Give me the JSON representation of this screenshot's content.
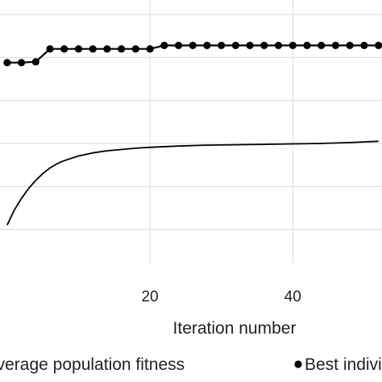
{
  "chart_data": {
    "type": "line",
    "xlabel": "Iteration number",
    "xlim": [
      -1,
      52.5
    ],
    "ylim": [
      0,
      6
    ],
    "grid": true,
    "x_ticks": [
      {
        "value": 20,
        "label": "20"
      },
      {
        "value": 40,
        "label": "40"
      }
    ],
    "legend": {
      "position": "bottom",
      "entries": [
        {
          "label": "Average population fitness",
          "marker": "line"
        },
        {
          "label": "Best individual",
          "marker": "circle"
        }
      ]
    },
    "series": [
      {
        "name": "Best individual",
        "marker": "circle",
        "color": "#000000",
        "x": [
          0,
          2,
          4,
          6,
          8,
          10,
          12,
          14,
          16,
          18,
          20,
          22,
          24,
          26,
          28,
          30,
          32,
          34,
          36,
          38,
          40,
          42,
          44,
          46,
          48,
          50,
          52
        ],
        "y": [
          4.88,
          4.88,
          4.9,
          5.2,
          5.2,
          5.2,
          5.2,
          5.2,
          5.2,
          5.2,
          5.2,
          5.28,
          5.28,
          5.28,
          5.28,
          5.28,
          5.28,
          5.28,
          5.28,
          5.28,
          5.28,
          5.28,
          5.28,
          5.28,
          5.28,
          5.28,
          5.28
        ]
      },
      {
        "name": "Average population fitness",
        "marker": "none",
        "color": "#000000",
        "x": [
          0,
          1,
          2,
          3,
          4,
          5,
          6,
          7,
          8,
          10,
          12,
          14,
          16,
          18,
          20,
          24,
          28,
          32,
          36,
          40,
          44,
          48,
          52
        ],
        "y": [
          1.1,
          1.45,
          1.72,
          1.95,
          2.14,
          2.3,
          2.43,
          2.53,
          2.6,
          2.71,
          2.78,
          2.83,
          2.86,
          2.89,
          2.91,
          2.94,
          2.96,
          2.97,
          2.98,
          2.99,
          3.0,
          3.02,
          3.05
        ]
      }
    ]
  }
}
